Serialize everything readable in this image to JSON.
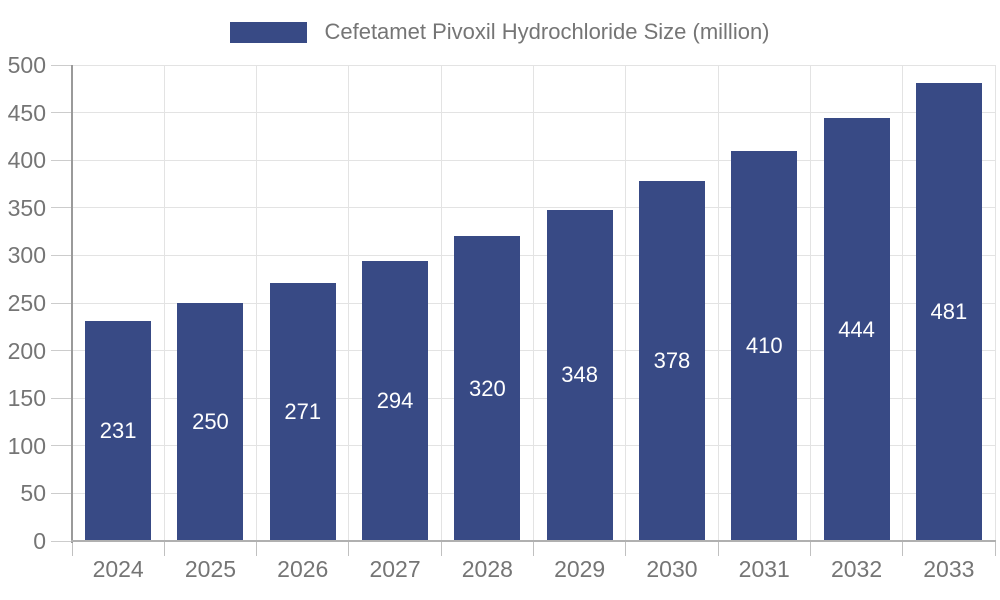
{
  "legend": {
    "label": "Cefetamet Pivoxil Hydrochloride Size (million)"
  },
  "chart_data": {
    "type": "bar",
    "title": "Cefetamet Pivoxil Hydrochloride Size (million)",
    "series_name": "Cefetamet Pivoxil Hydrochloride Size (million)",
    "categories": [
      "2024",
      "2025",
      "2026",
      "2027",
      "2028",
      "2029",
      "2030",
      "2031",
      "2032",
      "2033"
    ],
    "values": [
      231,
      250,
      271,
      294,
      320,
      348,
      378,
      410,
      444,
      481
    ],
    "xlabel": "",
    "ylabel": "",
    "ylim": [
      0,
      500
    ],
    "ytick_step": 50,
    "grid": true,
    "legend_position": "top-center",
    "bar_color": "#384A85",
    "bar_label_color": "#FFFFFF",
    "axis_label_color": "#757575",
    "legend_text_color": "#757575",
    "grid_color": "#E3E3E3"
  }
}
